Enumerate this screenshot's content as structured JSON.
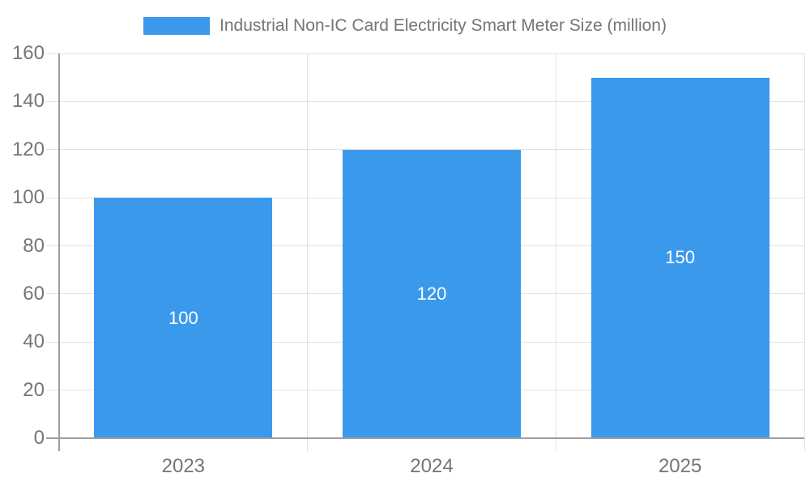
{
  "legend": {
    "label": "Industrial Non-IC Card Electricity Smart Meter Size (million)"
  },
  "chart_data": {
    "type": "bar",
    "categories": [
      "2023",
      "2024",
      "2025"
    ],
    "series": [
      {
        "name": "Industrial Non-IC Card Electricity Smart Meter Size (million)",
        "values": [
          100,
          120,
          150
        ]
      }
    ],
    "data_labels": [
      "100",
      "120",
      "150"
    ],
    "title": "Industrial Non-IC Card Electricity Smart Meter Size (million)",
    "xlabel": "",
    "ylabel": "",
    "ylim": [
      0,
      160
    ],
    "yticks": [
      0,
      20,
      40,
      60,
      80,
      100,
      120,
      140,
      160
    ],
    "grid": true,
    "legend_position": "top",
    "colors": {
      "bar": "#3B99EC",
      "grid": "#e2e2e2",
      "axis": "#9e9e9e",
      "tick_label": "#757575",
      "data_label": "#ffffff",
      "background": "#ffffff"
    }
  }
}
